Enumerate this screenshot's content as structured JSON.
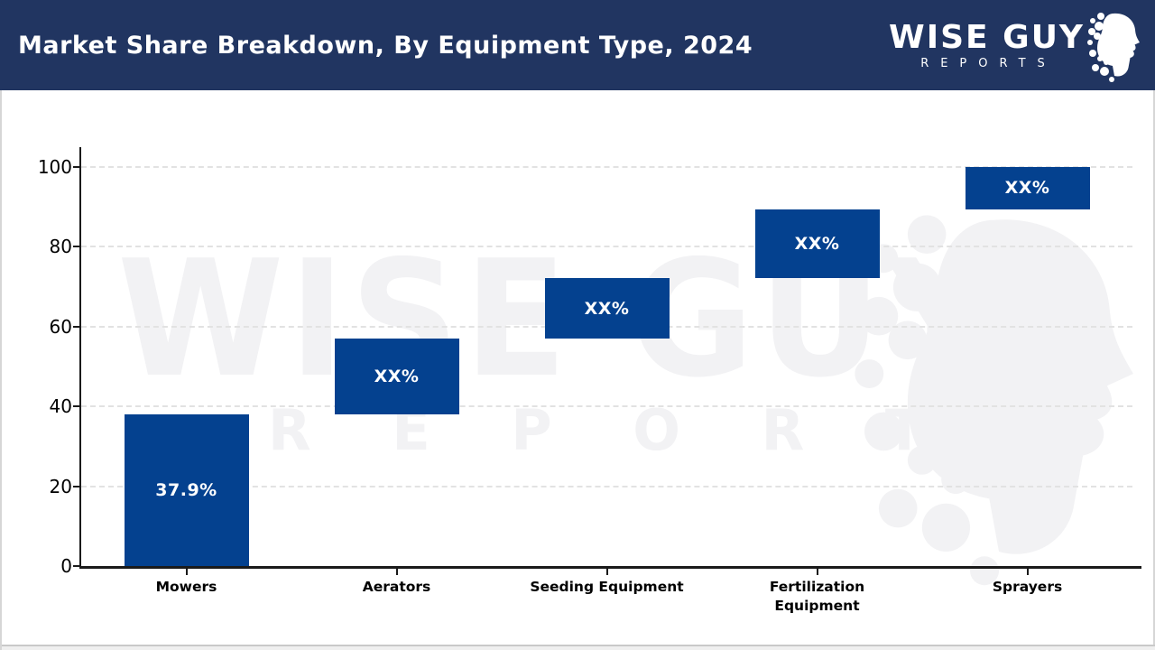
{
  "header": {
    "title": "Market Share Breakdown, By Equipment Type, 2024",
    "bg_color": "#213561",
    "logo": {
      "line1": "WISE GUY",
      "line2": "REPORTS"
    }
  },
  "watermark": {
    "line1": "WISE GUY",
    "line2": "R E P O R T S"
  },
  "chart_data": {
    "type": "bar",
    "variant": "waterfall",
    "title": "Market Share Breakdown, By Equipment Type, 2024",
    "categories": [
      "Mowers",
      "Aerators",
      "Seeding Equipment",
      "Fertilization\nEquipment",
      "Sprayers"
    ],
    "segments": [
      {
        "category": "Mowers",
        "start": 0,
        "end": 37.9,
        "label": "37.9%"
      },
      {
        "category": "Aerators",
        "start": 37.9,
        "end": 56.9,
        "label": "XX%"
      },
      {
        "category": "Seeding Equipment",
        "start": 56.9,
        "end": 72.1,
        "label": "XX%"
      },
      {
        "category": "Fertilization Equipment",
        "start": 72.1,
        "end": 89.3,
        "label": "XX%"
      },
      {
        "category": "Sprayers",
        "start": 89.3,
        "end": 100,
        "label": "XX%"
      }
    ],
    "ylim": [
      0,
      105
    ],
    "yticks": [
      0,
      20,
      40,
      60,
      80,
      100
    ],
    "xlabel": "",
    "ylabel": "",
    "grid": "horizontal-dashed",
    "legend": "none",
    "bar_color": "#04418F",
    "bar_label_color": "#ffffff",
    "axis_color": "#1a1a1a",
    "grid_color": "#e2e2e2"
  }
}
